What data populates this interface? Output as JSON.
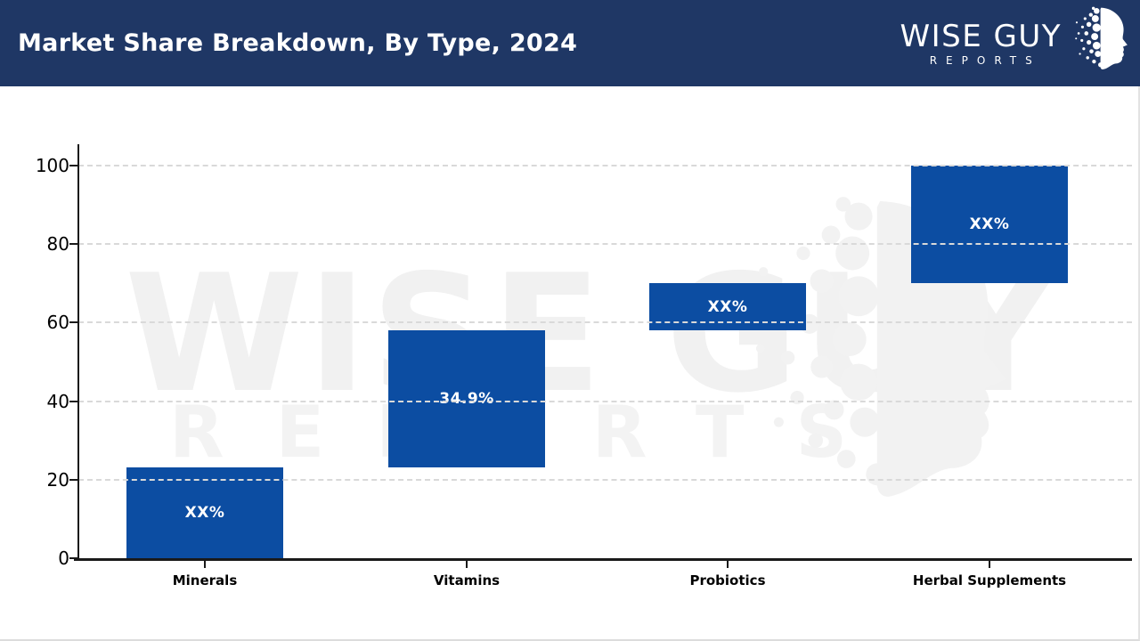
{
  "header": {
    "title": "Market Share Breakdown, By Type, 2024",
    "logo": {
      "line1": "WISE GUY",
      "line2": "REPORTS",
      "face_icon": "dotted-face-profile-icon"
    }
  },
  "watermark": {
    "line1": "WISE GUY",
    "line2": "REPORTS"
  },
  "colors": {
    "header_bg": "#1f3765",
    "bar_blue": "#0c4da2",
    "grid": "#d9d9d9",
    "axis": "#1a1a1a",
    "value_label": "#ffffff",
    "watermark": "#f1f1f1"
  },
  "chart_data": {
    "type": "bar",
    "subtype": "floating-waterfall",
    "title": "Market Share Breakdown, By Type, 2024",
    "categories": [
      "Minerals",
      "Vitamins",
      "Probiotics",
      "Herbal Supplements"
    ],
    "bars": [
      {
        "category": "Minerals",
        "start": 0,
        "end": 23.2,
        "label": "XX%"
      },
      {
        "category": "Vitamins",
        "start": 23.2,
        "end": 58.1,
        "label": "34.9%"
      },
      {
        "category": "Probiotics",
        "start": 58.1,
        "end": 70,
        "label": "XX%"
      },
      {
        "category": "Herbal Supplements",
        "start": 70,
        "end": 100,
        "label": "XX%"
      }
    ],
    "yticks": [
      0,
      20,
      40,
      60,
      80,
      100
    ],
    "ylim": [
      0,
      105
    ],
    "xlabel": "",
    "ylabel": "",
    "grid": "dashed-horizontal",
    "legend": "none",
    "bar_color": "#0c4da2",
    "value_label_color": "#ffffff"
  }
}
